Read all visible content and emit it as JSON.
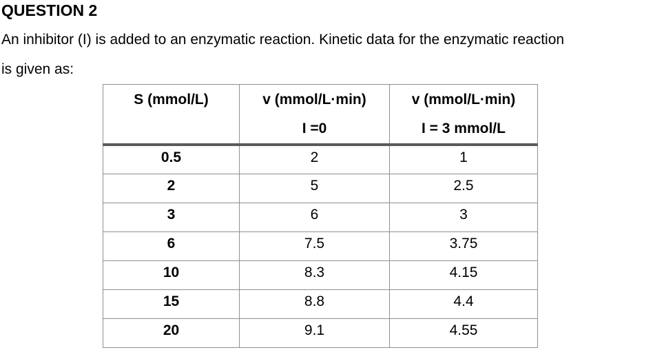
{
  "question": {
    "title": "QUESTION 2",
    "intro_line1": "An inhibitor (I) is added to an enzymatic reaction. Kinetic data for the enzymatic reaction",
    "intro_line2": "is given as:"
  },
  "table": {
    "columns": [
      {
        "line1": "S (mmol/L)",
        "line2": ""
      },
      {
        "line1": "v (mmol/L·min)",
        "line2": "I =0"
      },
      {
        "line1": "v (mmol/L·min)",
        "line2": "I = 3 mmol/L"
      }
    ],
    "rows": [
      {
        "s": "0.5",
        "v_i0": "2",
        "v_i3": "1"
      },
      {
        "s": "2",
        "v_i0": "5",
        "v_i3": "2.5"
      },
      {
        "s": "3",
        "v_i0": "6",
        "v_i3": "3"
      },
      {
        "s": "6",
        "v_i0": "7.5",
        "v_i3": "3.75"
      },
      {
        "s": "10",
        "v_i0": "8.3",
        "v_i3": "4.15"
      },
      {
        "s": "15",
        "v_i0": "8.8",
        "v_i3": "4.4"
      },
      {
        "s": "20",
        "v_i0": "9.1",
        "v_i3": "4.55"
      }
    ]
  },
  "chart_data": {
    "type": "table",
    "title": "Kinetic data for the enzymatic reaction",
    "categories_label": "S (mmol/L)",
    "categories": [
      0.5,
      2,
      3,
      6,
      10,
      15,
      20
    ],
    "series": [
      {
        "name": "v (mmol/L·min) I =0",
        "values": [
          2,
          5,
          6,
          7.5,
          8.3,
          8.8,
          9.1
        ]
      },
      {
        "name": "v (mmol/L·min) I = 3 mmol/L",
        "values": [
          1,
          2.5,
          3,
          3.75,
          4.15,
          4.4,
          4.55
        ]
      }
    ]
  },
  "colors": {
    "text": "#000000",
    "background": "#ffffff",
    "grid_border": "#8f8f8f",
    "header_rule": "#5b5b5b"
  }
}
